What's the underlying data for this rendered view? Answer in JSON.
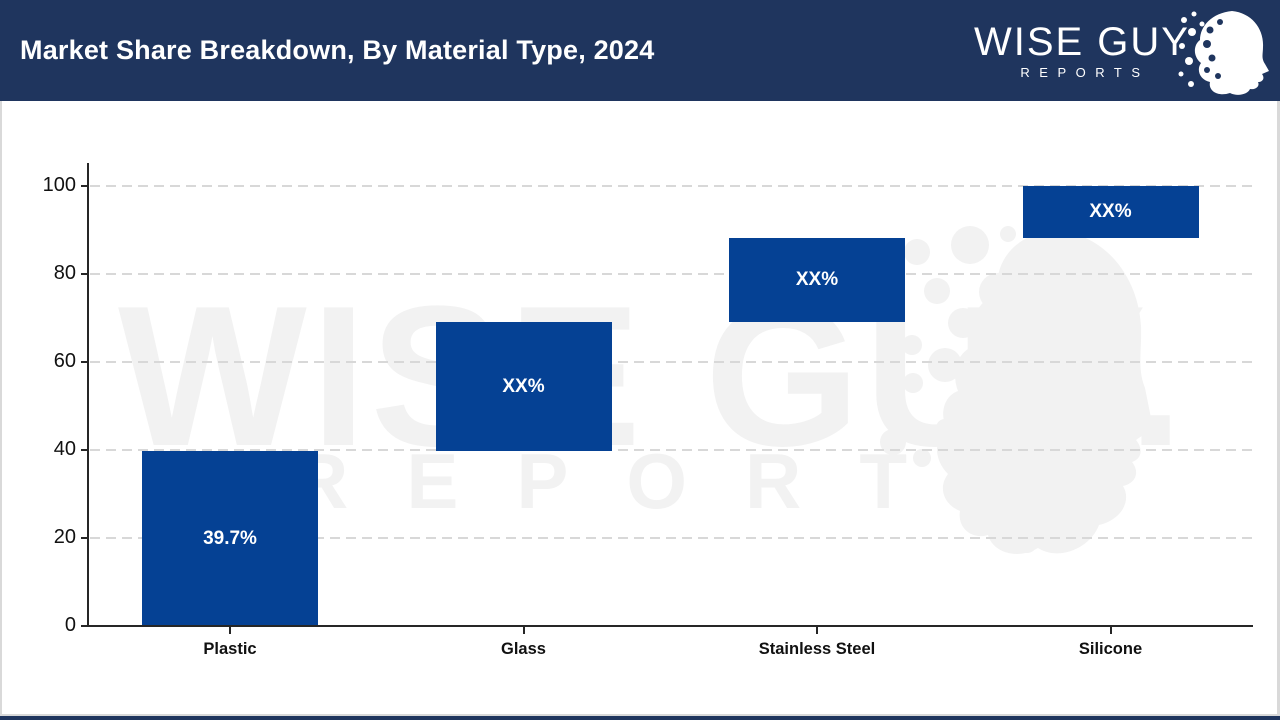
{
  "header": {
    "title": "Market Share Breakdown, By Material Type, 2024",
    "brand": {
      "name": "WISE GUY",
      "sub": "REPORTS"
    }
  },
  "watermark": {
    "line1": "WISE GUY.",
    "line2": "REPORTS"
  },
  "colors": {
    "header_bg": "#1f355e",
    "bar": "#054194",
    "grid": "#d8d8d8",
    "axis": "#262626",
    "watermark": "#f2f2f2",
    "bar_label": "#ffffff"
  },
  "chart_data": {
    "type": "bar",
    "subtype": "waterfall",
    "title": "Market Share Breakdown, By Material Type, 2024",
    "categories": [
      "Plastic",
      "Glass",
      "Stainless Steel",
      "Silicone"
    ],
    "bars": [
      {
        "category": "Plastic",
        "start": 0,
        "end": 39.7,
        "label": "39.7%"
      },
      {
        "category": "Glass",
        "start": 39.7,
        "end": 69.1,
        "label": "XX%"
      },
      {
        "category": "Stainless Steel",
        "start": 69.1,
        "end": 88.2,
        "label": "XX%"
      },
      {
        "category": "Silicone",
        "start": 88.2,
        "end": 100,
        "label": "XX%"
      }
    ],
    "xlabel": "",
    "ylabel": "",
    "ylim": [
      0,
      100
    ],
    "yticks": [
      0,
      20,
      40,
      60,
      80,
      100
    ],
    "grid": "horizontal-dashed",
    "legend": "none"
  }
}
